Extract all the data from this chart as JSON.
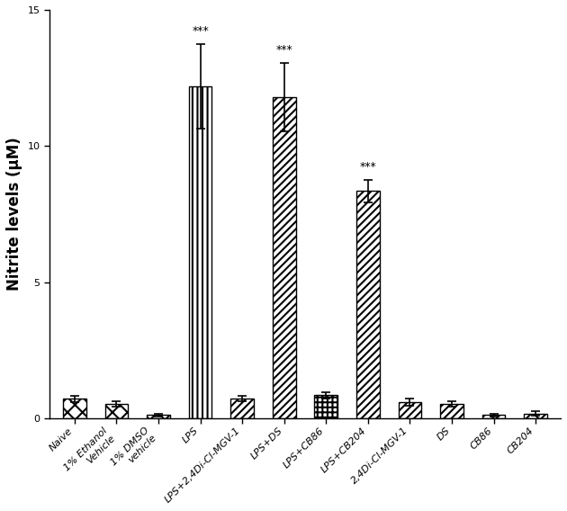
{
  "categories": [
    "Naive",
    "1% Ethanol\nVehicle",
    "1% DMSO\nvehicle",
    "LPS",
    "LPS+2,4Di-Cl-MGV-1",
    "LPS+DS",
    "LPS+CB86",
    "LPS+CB204",
    "2,4Di-Cl-MGV-1",
    "DS",
    "CB86",
    "CB204"
  ],
  "values": [
    0.72,
    0.52,
    0.12,
    12.2,
    0.72,
    11.8,
    0.85,
    8.35,
    0.6,
    0.52,
    0.12,
    0.18
  ],
  "errors": [
    0.12,
    0.1,
    0.05,
    1.55,
    0.1,
    1.25,
    0.12,
    0.42,
    0.12,
    0.1,
    0.05,
    0.08
  ],
  "significance": [
    "",
    "",
    "",
    "***",
    "",
    "***",
    "",
    "***",
    "",
    "",
    "",
    ""
  ],
  "hatch_map": [
    "xx",
    "xx",
    "xx",
    "|||",
    "////",
    "////",
    "+++",
    "////",
    "////",
    "////",
    "xx",
    "xx"
  ],
  "ylabel": "Nitrite levels (μM)",
  "ylim": [
    0,
    15
  ],
  "yticks": [
    0,
    5,
    10,
    15
  ],
  "bar_edgecolor": "black",
  "background_color": "white",
  "sig_fontsize": 9,
  "axis_fontsize": 11,
  "ylabel_fontsize": 12,
  "tick_fontsize": 8,
  "bar_width": 0.55,
  "figsize": [
    6.3,
    5.68
  ],
  "dpi": 100
}
